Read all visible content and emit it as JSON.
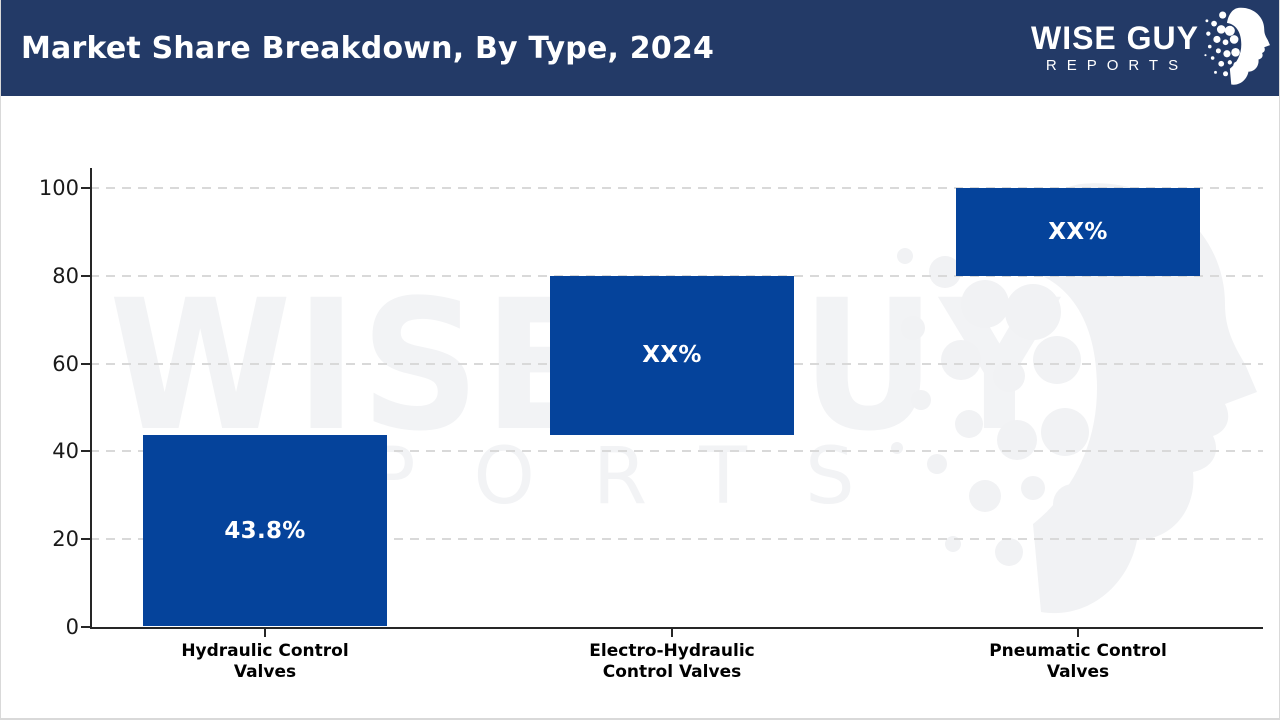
{
  "header": {
    "title": "Market Share Breakdown, By Type, 2024",
    "logo": {
      "line1": "WISE GUY",
      "line2": "REPORTS"
    }
  },
  "watermark": {
    "main": "WISE GUY",
    "sub": "REPORTS"
  },
  "colors": {
    "header_bg": "#233a67",
    "bar": "#05439b",
    "gridline": "#d9d9d9",
    "axis": "#262626",
    "watermark": "#f2f3f5",
    "bar_label": "#ffffff"
  },
  "chart_data": {
    "type": "bar",
    "variant": "cumulative-range-bars",
    "title": "Market Share Breakdown, By Type, 2024",
    "categories": [
      "Hydraulic Control Valves",
      "Electro-Hydraulic Control Valves",
      "Pneumatic Control Valves"
    ],
    "bars": [
      {
        "category_lines": [
          "Hydraulic Control",
          "Valves"
        ],
        "start": 0,
        "end": 43.8,
        "value_label": "43.8%"
      },
      {
        "category_lines": [
          "Electro-Hydraulic",
          "Control Valves"
        ],
        "start": 43.8,
        "end": 80,
        "value_label": "XX%"
      },
      {
        "category_lines": [
          "Pneumatic Control",
          "Valves"
        ],
        "start": 80,
        "end": 100,
        "value_label": "XX%"
      }
    ],
    "ylim": [
      0,
      100
    ],
    "yticks": [
      0,
      20,
      40,
      60,
      80,
      100
    ],
    "grid": true,
    "legend": false,
    "bar_color": "#05439b",
    "value_label_color": "#ffffff"
  }
}
